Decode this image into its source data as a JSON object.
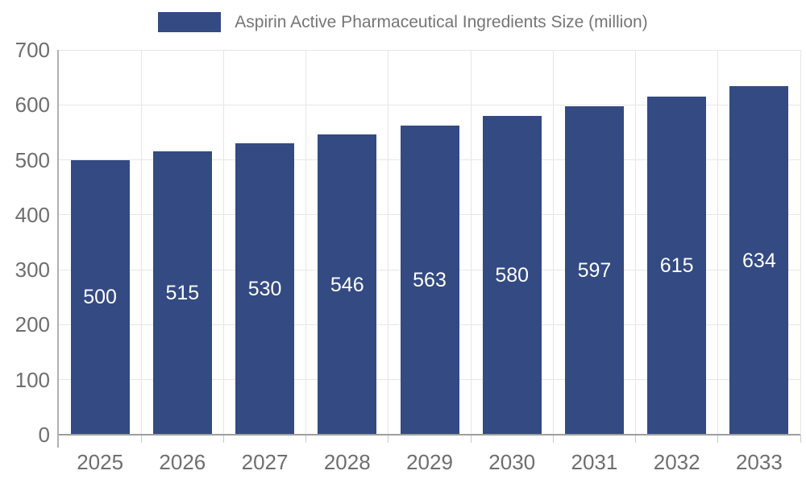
{
  "chart_data": {
    "type": "bar",
    "title": "Aspirin Active Pharmaceutical Ingredients Size (million)",
    "categories": [
      "2025",
      "2026",
      "2027",
      "2028",
      "2029",
      "2030",
      "2031",
      "2032",
      "2033"
    ],
    "values": [
      500,
      515,
      530,
      546,
      563,
      580,
      597,
      615,
      634
    ],
    "xlabel": "",
    "ylabel": "",
    "ylim": [
      0,
      700
    ],
    "yticks": [
      0,
      100,
      200,
      300,
      400,
      500,
      600,
      700
    ],
    "grid": true,
    "legend_position": "top-center",
    "value_label_position": "inside-center",
    "colors": {
      "bar": "#344A82",
      "gridline": "#e6e6e6",
      "x_axis_line": "#9e9e9e",
      "y_axis_line": "#b0b0b0",
      "axis_tick": "#c9c9c9",
      "tick_label": "#6e6e6e",
      "legend_text": "#757575",
      "value_label": "#ffffff",
      "background": "#ffffff"
    }
  }
}
